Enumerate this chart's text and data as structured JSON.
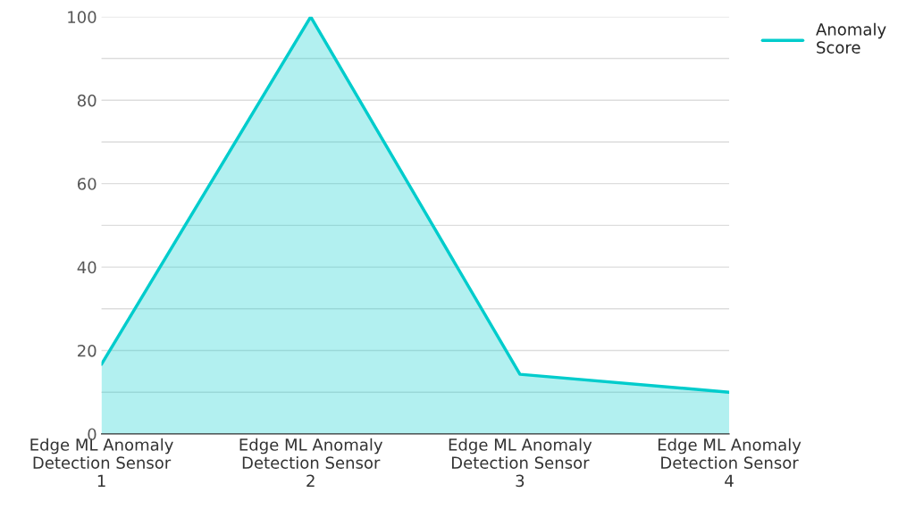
{
  "chart_data": {
    "type": "area",
    "categories": [
      "Edge ML Anomaly Detection Sensor 1",
      "Edge ML Anomaly Detection Sensor 2",
      "Edge ML Anomaly Detection Sensor 3",
      "Edge ML Anomaly Detection Sensor 4"
    ],
    "series": [
      {
        "name": "Anomaly Score",
        "color": "#00cccc",
        "values": [
          16.7,
          100,
          14.3,
          10.0
        ]
      }
    ],
    "ylim": [
      0,
      100
    ],
    "yticks": [
      0,
      {
        "value": 10,
        "label": null
      },
      20,
      {
        "value": 30,
        "label": null
      },
      40,
      {
        "value": 50,
        "label": null
      },
      60,
      {
        "value": 70,
        "label": null
      },
      80,
      {
        "value": 90,
        "label": null
      },
      100
    ],
    "grid": "y",
    "legend": "top right"
  }
}
